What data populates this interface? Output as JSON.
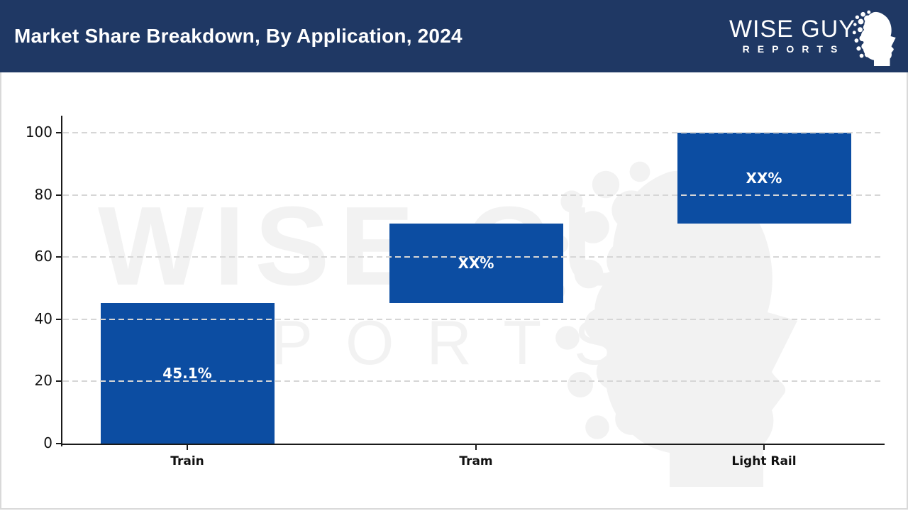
{
  "header": {
    "title": "Market Share Breakdown, By Application, 2024"
  },
  "brand": {
    "line1": "WISE GUY",
    "line2": "REPORTS"
  },
  "watermark": {
    "line1": "WISE GUY",
    "line2": "REPORTS"
  },
  "chart_data": {
    "type": "bar",
    "subtype": "waterfall",
    "title": "Market Share Breakdown, By Application, 2024",
    "categories": [
      "Train",
      "Tram",
      "Light Rail"
    ],
    "segments": [
      {
        "category": "Train",
        "start": 0,
        "end": 45.1,
        "value": 45.1,
        "label": "45.1%"
      },
      {
        "category": "Tram",
        "start": 45.1,
        "end": 70.8,
        "value": 25.7,
        "label": "XX%"
      },
      {
        "category": "Light Rail",
        "start": 70.8,
        "end": 100,
        "value": 29.2,
        "label": "XX%"
      }
    ],
    "yticks": [
      0,
      20,
      40,
      60,
      80,
      100
    ],
    "ylim": [
      0,
      105
    ],
    "grid": "dashed-horizontal",
    "legend": "none",
    "bar_color": "#0c4da2",
    "bar_label_color": "#ffffff"
  },
  "colors": {
    "header_bg": "#1f3864",
    "bar": "#0c4da2",
    "grid": "#d6d6d6",
    "axis": "#1a1a1a",
    "watermark": "#f2f2f2",
    "frame_border": "#d9d9d9"
  }
}
